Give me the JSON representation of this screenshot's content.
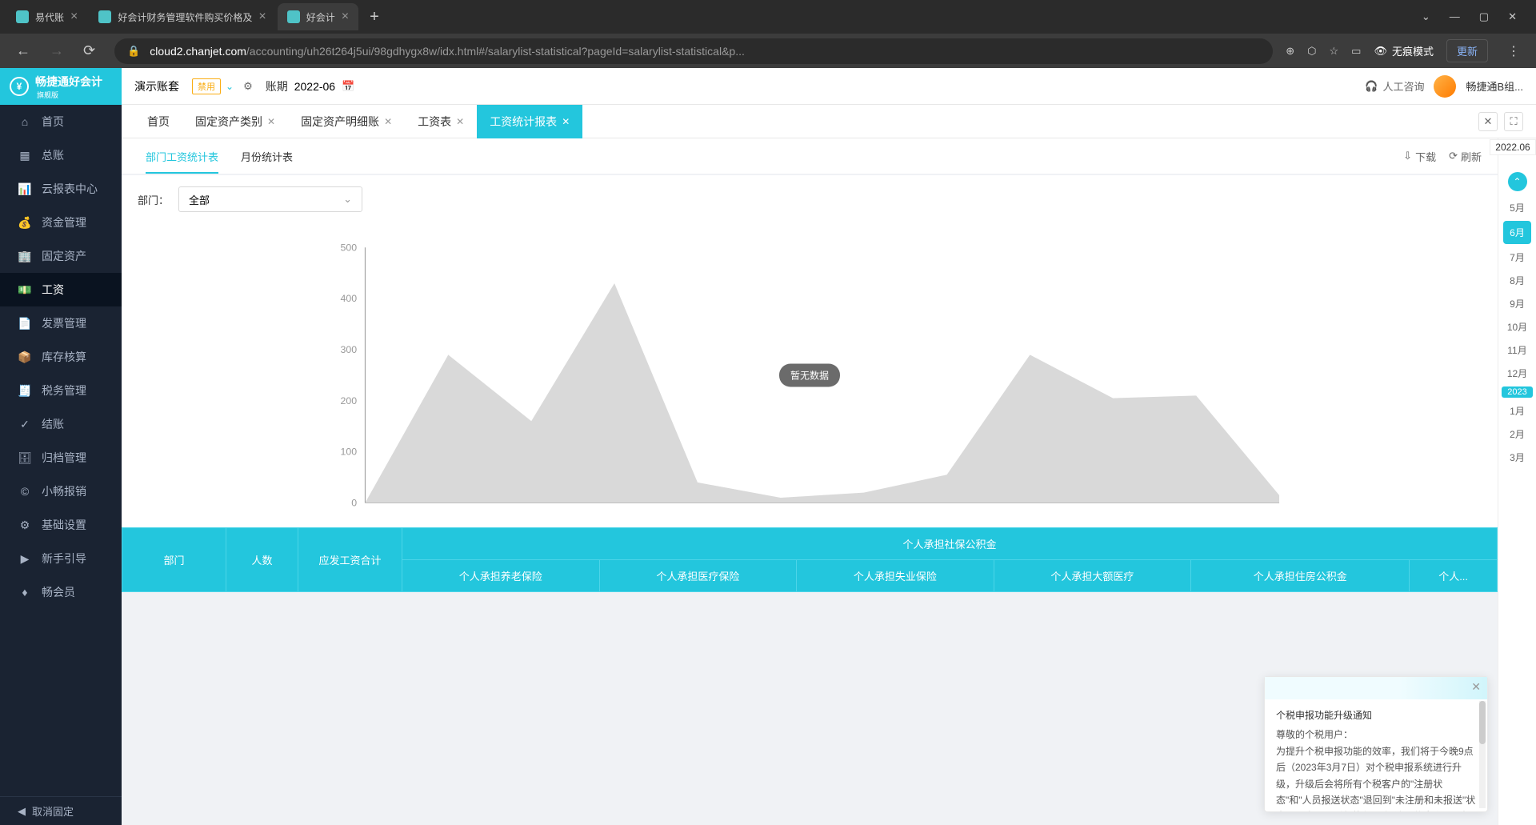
{
  "browser": {
    "tabs": [
      {
        "title": "易代账",
        "favicon": "#4fc3c7"
      },
      {
        "title": "好会计财务管理软件购买价格及",
        "favicon": "#4fc3c7"
      },
      {
        "title": "好会计",
        "favicon": "#4fc3c7",
        "active": true
      }
    ],
    "url_prefix": "cloud2.chanjet.com",
    "url_path": "/accounting/uh26t264j5ui/98gdhygx8w/idx.html#/salarylist-statistical?pageId=salarylist-statistical&p...",
    "incognito_label": "无痕模式",
    "update_label": "更新"
  },
  "logo": {
    "main": "畅捷通好会计",
    "sub": "旗舰版"
  },
  "sidebar": {
    "items": [
      {
        "label": "首页",
        "icon": "home"
      },
      {
        "label": "总账",
        "icon": "ledger"
      },
      {
        "label": "云报表中心",
        "icon": "chart"
      },
      {
        "label": "资金管理",
        "icon": "money"
      },
      {
        "label": "固定资产",
        "icon": "asset"
      },
      {
        "label": "工资",
        "icon": "salary",
        "active": true
      },
      {
        "label": "发票管理",
        "icon": "invoice"
      },
      {
        "label": "库存核算",
        "icon": "inventory"
      },
      {
        "label": "税务管理",
        "icon": "tax"
      },
      {
        "label": "结账",
        "icon": "close"
      },
      {
        "label": "归档管理",
        "icon": "archive"
      },
      {
        "label": "小畅报销",
        "icon": "expense"
      },
      {
        "label": "基础设置",
        "icon": "settings"
      },
      {
        "label": "新手引导",
        "icon": "guide"
      },
      {
        "label": "畅会员",
        "icon": "vip"
      }
    ],
    "pin_label": "取消固定"
  },
  "topbar": {
    "account_name": "演示账套",
    "badge": "禁用",
    "period_label": "账期",
    "period_value": "2022-06",
    "support_label": "人工咨询",
    "user_name": "畅捷通B组..."
  },
  "page_tabs": [
    {
      "label": "首页",
      "closable": false
    },
    {
      "label": "固定资产类别",
      "closable": true
    },
    {
      "label": "固定资产明细账",
      "closable": true
    },
    {
      "label": "工资表",
      "closable": true
    },
    {
      "label": "工资统计报表",
      "closable": true,
      "active": true
    }
  ],
  "sub_tabs": [
    {
      "label": "部门工资统计表",
      "active": true
    },
    {
      "label": "月份统计表"
    }
  ],
  "actions": {
    "download": "下载",
    "refresh": "刷新"
  },
  "filter": {
    "label": "部门：",
    "value": "全部"
  },
  "chart": {
    "type": "area",
    "ylim": [
      0,
      500
    ],
    "ytick_step": 100,
    "yticks": [
      "0",
      "100",
      "200",
      "300",
      "400",
      "500"
    ],
    "points": [
      0,
      290,
      160,
      430,
      40,
      10,
      20,
      55,
      290,
      205,
      210,
      15
    ],
    "fill_color": "#d9d9d9",
    "grid_color": "#f0f0f0",
    "axis_color": "#999",
    "tick_fontsize": 12,
    "no_data_label": "暂无数据"
  },
  "table": {
    "merged_header": "个人承担社保公积金",
    "columns": [
      "部门",
      "人数",
      "应发工资合计",
      "个人承担养老保险",
      "个人承担医疗保险",
      "个人承担失业保险",
      "个人承担大额医疗",
      "个人承担住房公积金",
      "个人..."
    ]
  },
  "timeline": {
    "year_top": "2022.06",
    "months_2022": [
      "5月",
      "6月",
      "7月",
      "8月",
      "9月",
      "10月",
      "11月",
      "12月"
    ],
    "active_month": "6月",
    "year_marker": "2023",
    "months_2023": [
      "1月",
      "2月",
      "3月"
    ]
  },
  "notification": {
    "title": "个税申报功能升级通知",
    "greeting": "尊敬的个税用户：",
    "body": "为提升个税申报功能的效率，我们将于今晚9点后（2023年3月7日）对个税申报系统进行升级，升级后会将所有个税客户的\"注册状态\"和\"人员报送状态\"退回到\"未注册和未报送\"状态，用户需要重新执行一次\"注册信息和人员报送\"成功后才"
  }
}
